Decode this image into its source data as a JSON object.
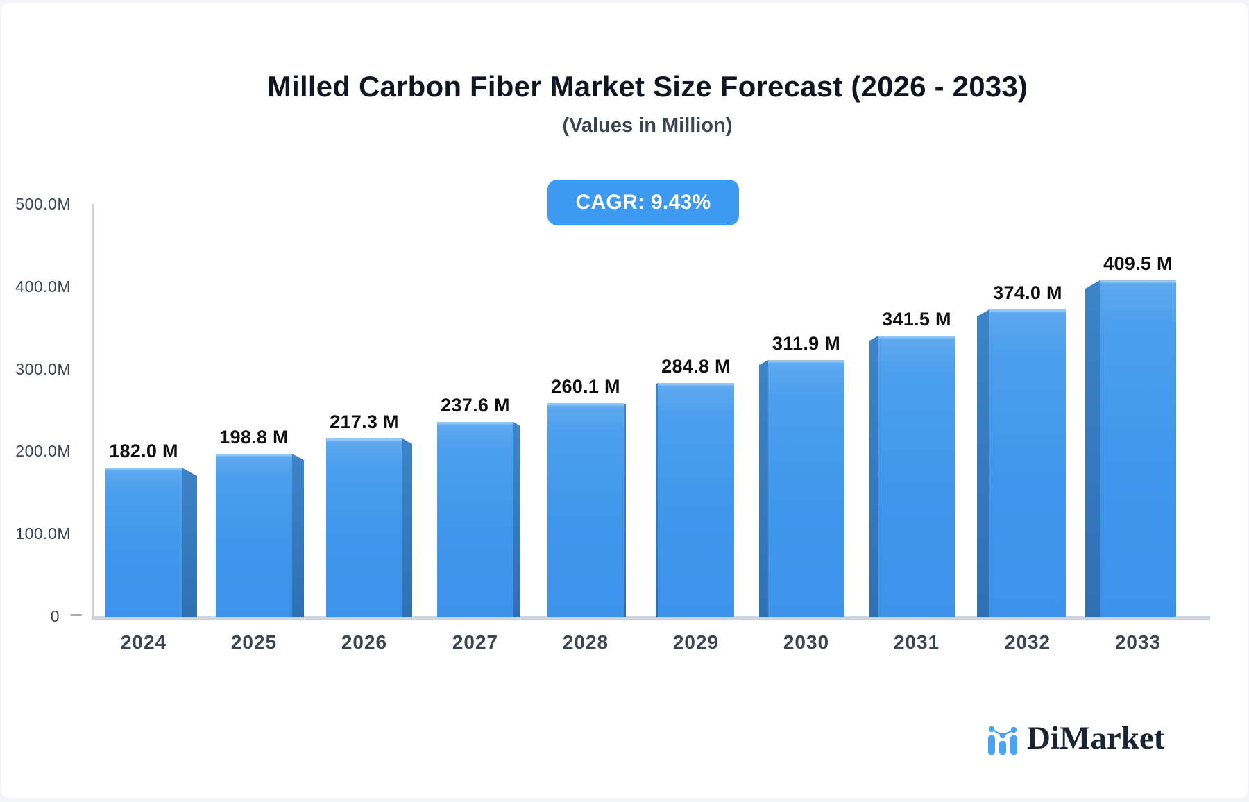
{
  "header": {
    "title": "Milled Carbon Fiber Market Size Forecast (2026 - 2033)",
    "subtitle": "(Values in Million)",
    "cagr_badge": "CAGR: 9.43%"
  },
  "chart_data": {
    "type": "bar",
    "title": "Milled Carbon Fiber Market Size Forecast (2026 - 2033)",
    "subtitle": "(Values in Million)",
    "unit": "Million",
    "cagr_percent": 9.43,
    "categories": [
      "2024",
      "2025",
      "2026",
      "2027",
      "2028",
      "2029",
      "2030",
      "2031",
      "2032",
      "2033"
    ],
    "values": [
      182.0,
      198.8,
      217.3,
      237.6,
      260.1,
      284.8,
      311.9,
      341.5,
      374.0,
      409.5
    ],
    "value_labels": [
      "182.0 M",
      "198.8 M",
      "217.3 M",
      "237.6 M",
      "260.1 M",
      "284.8 M",
      "311.9 M",
      "341.5 M",
      "374.0 M",
      "409.5 M"
    ],
    "xlabel": "",
    "ylabel": "",
    "ylim": [
      0,
      500
    ],
    "grid": false,
    "legend": false,
    "y_axis": {
      "ticks": [
        {
          "label": "500.0M",
          "value": 500
        },
        {
          "label": "400.0M",
          "value": 400
        },
        {
          "label": "300.0M",
          "value": 300
        },
        {
          "label": "200.0M",
          "value": 200
        },
        {
          "label": "100.0M",
          "value": 100
        },
        {
          "label": "0",
          "value": 0
        }
      ]
    }
  },
  "colors": {
    "bar_face": "#4399ec",
    "bar_face_highlight": "#93c8f6",
    "bar_side": "#2f70b2",
    "badge_bg": "#3d9af0",
    "badge_text": "#ffffff",
    "axis_line": "#cfd3da",
    "title_text": "#101521",
    "subtitle_text": "#3c4452",
    "value_label_text": "#0d0e10",
    "tick_label_text": "#3c4454",
    "logo_blue": "#49a2f2",
    "logo_text_color": "#1b2433",
    "card_bg": "#ffffff",
    "page_bg": "#f4f5f8"
  },
  "branding": {
    "logo_text": "DiMarket"
  }
}
